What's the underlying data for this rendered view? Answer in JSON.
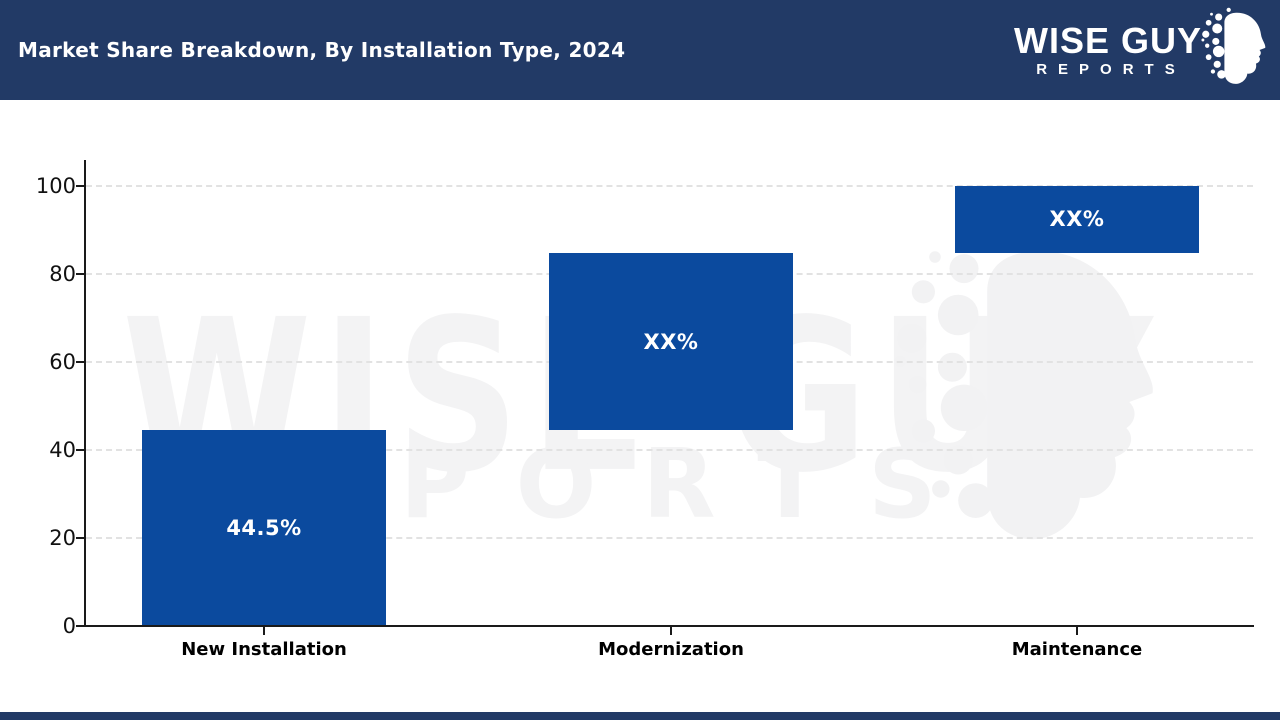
{
  "header": {
    "title": "Market Share Breakdown, By Installation Type, 2024",
    "logo": {
      "primary": "WISE GUY",
      "secondary": "REPORTS"
    }
  },
  "watermark": {
    "line1": "WISE GUY",
    "line2": "REPORTS"
  },
  "chart_data": {
    "type": "bar",
    "subtype": "floating-segment-bar",
    "title": "Market Share Breakdown, By Installation Type, 2024",
    "categories": [
      "New Installation",
      "Modernization",
      "Maintenance"
    ],
    "series": [
      {
        "name": "Market Share (%)",
        "segments": [
          {
            "category": "New Installation",
            "start": 0,
            "end": 44.5,
            "label": "44.5%"
          },
          {
            "category": "Modernization",
            "start": 44.5,
            "end": 84.8,
            "label": "XX%"
          },
          {
            "category": "Maintenance",
            "start": 84.8,
            "end": 100,
            "label": "XX%"
          }
        ]
      }
    ],
    "xlabel": "",
    "ylabel": "",
    "ylim": [
      0,
      105
    ],
    "yticks": [
      0,
      20,
      40,
      60,
      80,
      100
    ],
    "grid": "horizontal-dashed",
    "legend": "none"
  },
  "theme": {
    "header_bg": "#223a66",
    "footer_bg": "#223a66",
    "page_bg": "#ffffff",
    "bar_color": "#0b4a9e",
    "bar_label_color": "#ffffff",
    "grid_color": "#e2e2e2",
    "axis_color": "#1a1a1a",
    "watermark_color": "#f3f3f4",
    "title_color": "#ffffff"
  }
}
